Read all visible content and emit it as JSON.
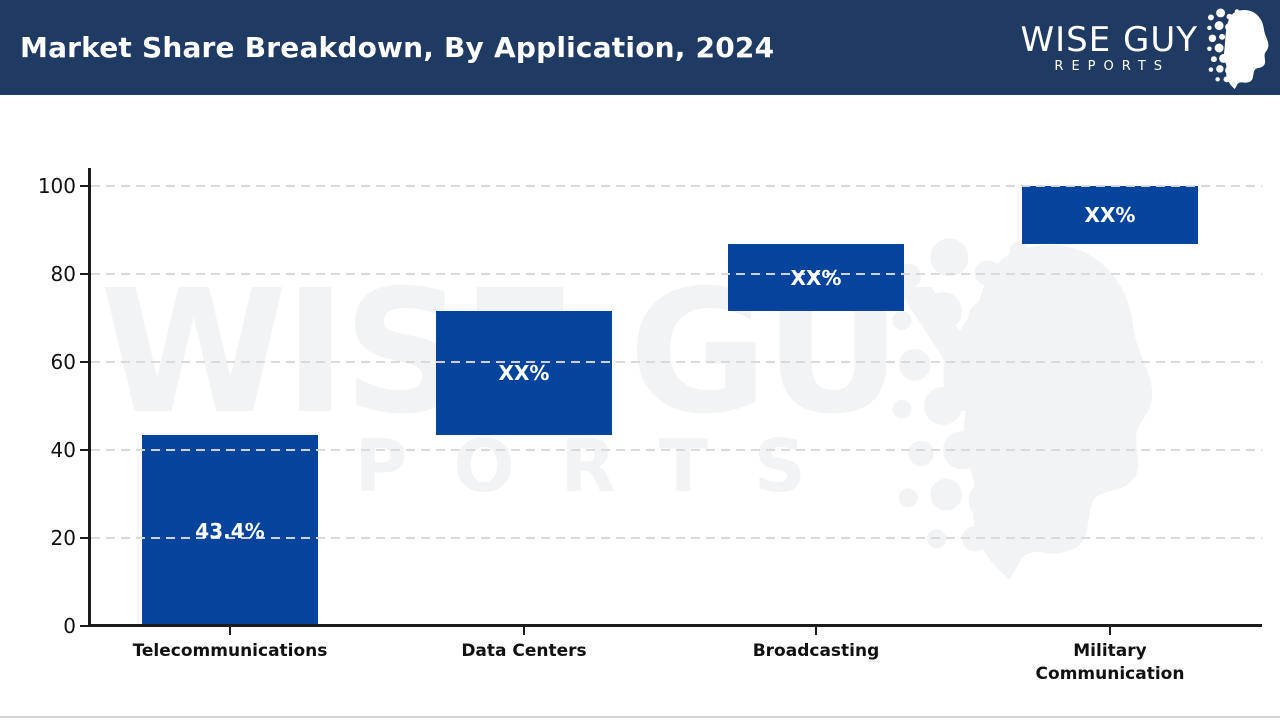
{
  "header": {
    "title": "Market Share Breakdown, By Application, 2024",
    "logo": {
      "line1": "WISE GUY",
      "line2": "REPORTS"
    }
  },
  "watermark": {
    "line1": "WISE GUY",
    "line2": "REPORTS"
  },
  "chart_data": {
    "type": "bar",
    "subtype": "waterfall",
    "title": "Market Share Breakdown, By Application, 2024",
    "xlabel": "",
    "ylabel": "",
    "categories": [
      "Telecommunications",
      "Data Centers",
      "Broadcasting",
      "Military Communication"
    ],
    "segments": [
      {
        "category": "Telecommunications",
        "start": 0,
        "end": 43.4,
        "value": 43.4,
        "label": "43.4%"
      },
      {
        "category": "Data Centers",
        "start": 43.4,
        "end": 71.6,
        "value": 28.2,
        "label": "XX%"
      },
      {
        "category": "Broadcasting",
        "start": 71.6,
        "end": 86.8,
        "value": 15.2,
        "label": "XX%"
      },
      {
        "category": "Military Communication",
        "start": 86.8,
        "end": 100,
        "value": 13.2,
        "label": "XX%"
      }
    ],
    "yticks": [
      0,
      20,
      40,
      60,
      80,
      100
    ],
    "ylim": [
      0,
      104
    ],
    "grid": true,
    "grid_style": "dashed",
    "legend": false
  },
  "colors": {
    "header_bg": "#1f3a63",
    "header_text": "#ffffff",
    "bar": "#05449c",
    "bar_label": "#ffffff",
    "grid": "#d9d9d9",
    "axis": "#1c1c1c",
    "watermark": "#f2f3f5",
    "bottom_rule": "#d3d3d3"
  }
}
